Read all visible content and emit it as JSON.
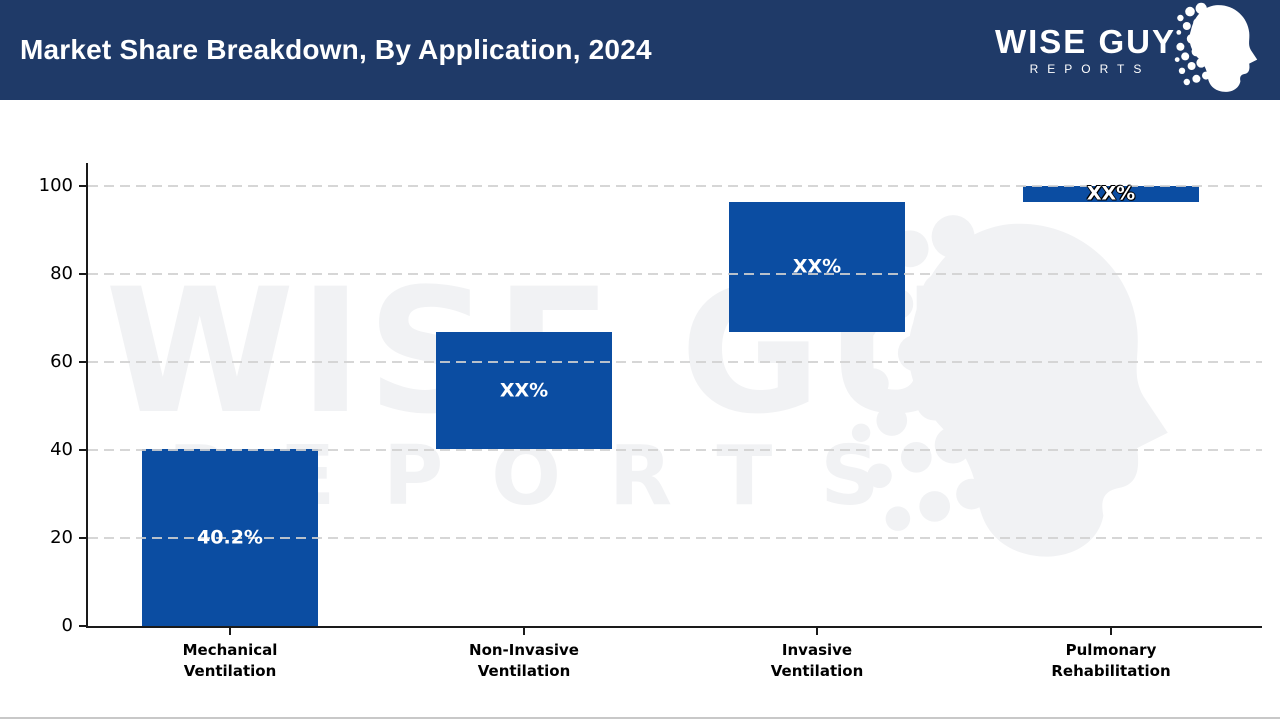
{
  "header": {
    "title": "Market Share Breakdown, By Application, 2024",
    "logo": {
      "name_line": "WISE GUY",
      "sub_line": "REPORTS"
    }
  },
  "watermark": {
    "line1": "WISE GUY",
    "line2": "REPORTS"
  },
  "chart_data": {
    "type": "bar",
    "variant": "waterfall-segments",
    "title": "Market Share Breakdown, By Application, 2024",
    "categories": [
      "Mechanical Ventilation",
      "Non-Invasive Ventilation",
      "Invasive Ventilation",
      "Pulmonary Rehabilitation"
    ],
    "bars": [
      {
        "category_lines": [
          "Mechanical",
          "Ventilation"
        ],
        "value_label": "40.2%",
        "start": 0,
        "end": 40.2
      },
      {
        "category_lines": [
          "Non-Invasive",
          "Ventilation"
        ],
        "value_label": "XX%",
        "start": 40.2,
        "end": 66.8
      },
      {
        "category_lines": [
          "Invasive",
          "Ventilation"
        ],
        "value_label": "XX%",
        "start": 66.8,
        "end": 96.4
      },
      {
        "category_lines": [
          "Pulmonary",
          "Rehabilitation"
        ],
        "value_label": "XX%",
        "start": 96.4,
        "end": 100
      }
    ],
    "y_ticks": [
      "0",
      "20",
      "40",
      "60",
      "80",
      "100"
    ],
    "y_tick_values": [
      0,
      20,
      40,
      60,
      80,
      100
    ],
    "ylim": [
      0,
      105
    ],
    "xlabel": "",
    "ylabel": "",
    "grid": "horizontal-dashed",
    "legend": "none",
    "bar_color": "#0b4da2",
    "header_color": "#1f3a68",
    "grid_color": "#d2d2d2",
    "watermark_color": "#f1f2f4"
  }
}
